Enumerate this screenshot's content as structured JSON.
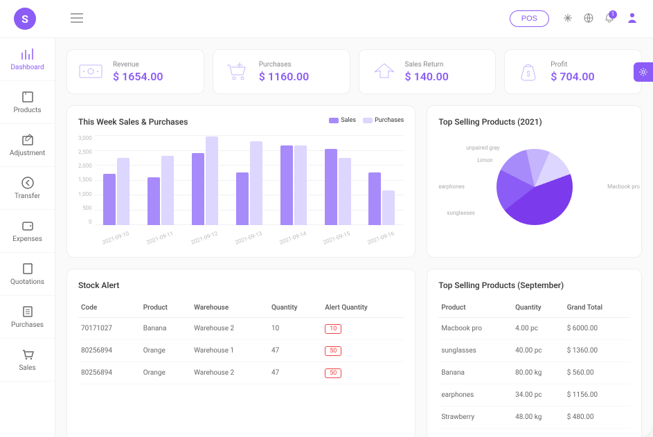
{
  "colors": {
    "primary": "#8b5cf6",
    "primary_light": "#c4b5fd",
    "primary_lighter": "#ddd6fe",
    "text_muted": "#888",
    "border": "#eee",
    "danger": "#ef4444",
    "bg": "#fafafa"
  },
  "topbar": {
    "pos_label": "POS",
    "notification_count": "1"
  },
  "sidebar": {
    "items": [
      {
        "label": "Dashboard",
        "icon": "chart"
      },
      {
        "label": "Products",
        "icon": "box"
      },
      {
        "label": "Adjustment",
        "icon": "edit"
      },
      {
        "label": "Transfer",
        "icon": "back"
      },
      {
        "label": "Expenses",
        "icon": "wallet"
      },
      {
        "label": "Quotations",
        "icon": "doc"
      },
      {
        "label": "Purchases",
        "icon": "list"
      },
      {
        "label": "Sales",
        "icon": "cart"
      }
    ],
    "active_index": 0
  },
  "kpis": [
    {
      "label": "Revenue",
      "value": "$ 1654.00"
    },
    {
      "label": "Purchases",
      "value": "$ 1160.00"
    },
    {
      "label": "Sales Return",
      "value": "$ 140.00"
    },
    {
      "label": "Profit",
      "value": "$ 704.00"
    }
  ],
  "bar_chart": {
    "title": "This Week Sales & Purchases",
    "type": "bar",
    "legend": [
      {
        "label": "Sales",
        "color": "#a78bfa"
      },
      {
        "label": "Purchases",
        "color": "#ddd6fe"
      }
    ],
    "ylim": [
      0,
      3000
    ],
    "ytick_step": 500,
    "yticks": [
      "3,000",
      "2,500",
      "2,000",
      "1,500",
      "1,000",
      "500",
      "0"
    ],
    "categories": [
      "2021-09-10",
      "2021-09-11",
      "2021-09-12",
      "2021-09-13",
      "2021-09-14",
      "2021-09-15",
      "2021-09-16"
    ],
    "series": {
      "sales": [
        1700,
        1600,
        2400,
        1750,
        2650,
        2550,
        1750
      ],
      "purchases": [
        2250,
        2300,
        2950,
        2800,
        2650,
        2250,
        1150
      ]
    },
    "bar_colors": {
      "sales": "#a78bfa",
      "purchases": "#ddd6fe"
    },
    "grid_color": "#f0f0f0",
    "label_fontsize": 8
  },
  "pie_chart": {
    "title": "Top Selling Products (2021)",
    "type": "pie",
    "slices": [
      {
        "label": "Macbook pro",
        "value": 45,
        "color": "#7c3aed"
      },
      {
        "label": "sunglasses",
        "value": 18,
        "color": "#8b5cf6"
      },
      {
        "label": "earphones",
        "value": 14,
        "color": "#a78bfa"
      },
      {
        "label": "Limon",
        "value": 10,
        "color": "#c4b5fd"
      },
      {
        "label": "unpaired gray",
        "value": 13,
        "color": "#ddd6fe"
      }
    ],
    "label_fontsize": 8,
    "label_color": "#aaaaaa"
  },
  "stock_alert": {
    "title": "Stock Alert",
    "columns": [
      "Code",
      "Product",
      "Warehouse",
      "Quantity",
      "Alert Quantity"
    ],
    "rows": [
      [
        "70171027",
        "Banana",
        "Warehouse 2",
        "10",
        "10"
      ],
      [
        "80256894",
        "Orange",
        "Warehouse 1",
        "47",
        "50"
      ],
      [
        "80256894",
        "Orange",
        "Warehouse 2",
        "47",
        "50"
      ]
    ]
  },
  "top_month": {
    "title": "Top Selling Products (September)",
    "columns": [
      "Product",
      "Quantity",
      "Grand Total"
    ],
    "rows": [
      [
        "Macbook pro",
        "4.00 pc",
        "$ 6000.00"
      ],
      [
        "sunglasses",
        "40.00 pc",
        "$ 1360.00"
      ],
      [
        "Banana",
        "80.00 kg",
        "$ 560.00"
      ],
      [
        "earphones",
        "34.00 pc",
        "$ 1156.00"
      ],
      [
        "Strawberry",
        "48.00 kg",
        "$ 480.00"
      ]
    ]
  }
}
